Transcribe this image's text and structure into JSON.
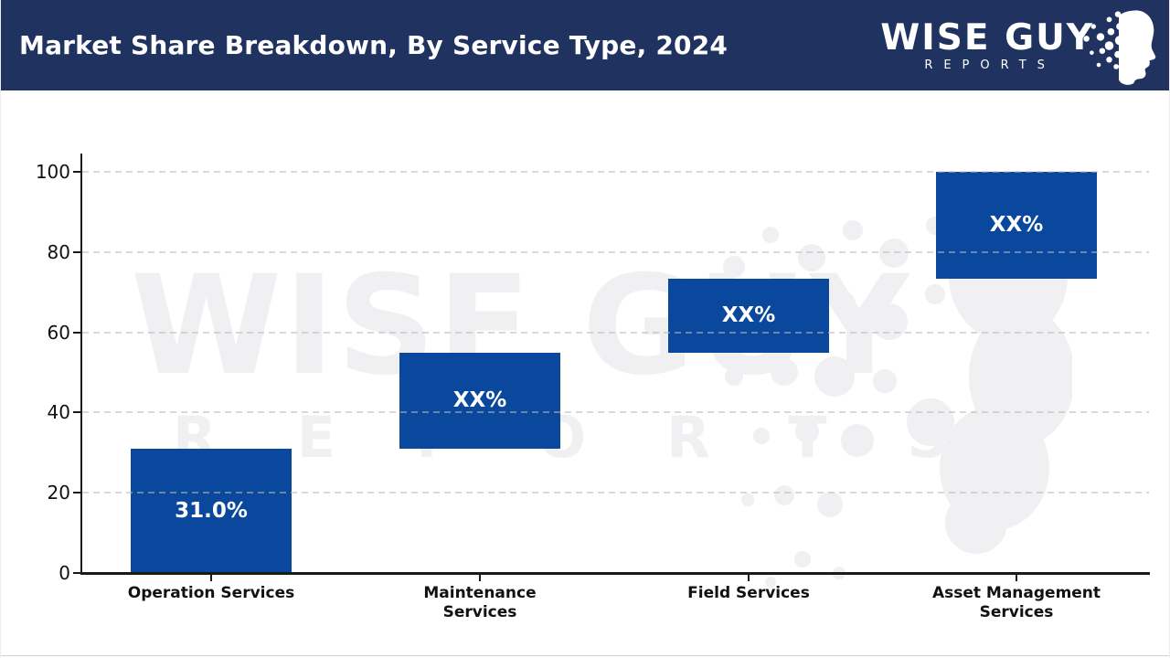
{
  "header": {
    "title": "Market Share Breakdown, By Service Type, 2024",
    "logo": {
      "line1": "WISE GUY",
      "line2": "REPORTS"
    }
  },
  "watermark": {
    "line1": "WISE GUY",
    "line2": "REPORTS"
  },
  "colors": {
    "header_bg": "#203360",
    "bar": "#0A489E",
    "grid": "#d9d9d9",
    "axis": "#1a1a1a",
    "watermark": "#f0f0f3",
    "value_label": "#ffffff"
  },
  "chart_data": {
    "type": "bar",
    "subtype": "waterfall",
    "title": "Market Share Breakdown, By Service Type, 2024",
    "categories": [
      "Operation Services",
      "Maintenance Services",
      "Field Services",
      "Asset Management Services"
    ],
    "category_lines": [
      [
        "Operation Services"
      ],
      [
        "Maintenance",
        "Services"
      ],
      [
        "Field Services"
      ],
      [
        "Asset Management",
        "Services"
      ]
    ],
    "segments": [
      {
        "category": "Operation Services",
        "start": 0,
        "end": 31,
        "label": "31.0%"
      },
      {
        "category": "Maintenance Services",
        "start": 31,
        "end": 55,
        "label": "XX%"
      },
      {
        "category": "Field Services",
        "start": 55,
        "end": 73.4,
        "label": "XX%"
      },
      {
        "category": "Asset Management Services",
        "start": 73.4,
        "end": 100,
        "label": "XX%"
      }
    ],
    "ylim": [
      0,
      100
    ],
    "yticks": [
      0,
      20,
      40,
      60,
      80,
      100
    ],
    "grid": "horizontal-dashed",
    "legend": "none"
  }
}
